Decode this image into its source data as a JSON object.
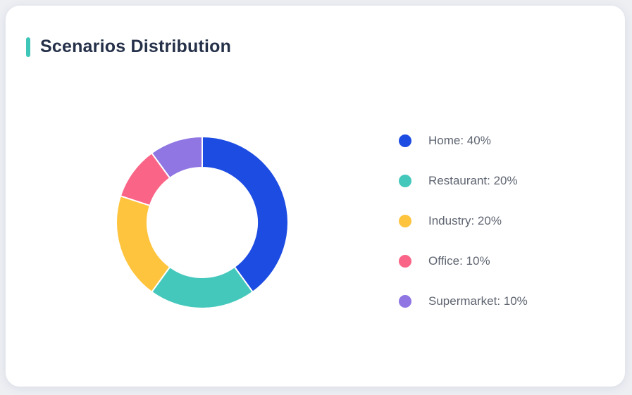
{
  "page": {
    "background_color": "#edeff3"
  },
  "card": {
    "background_color": "#ffffff"
  },
  "header": {
    "title": "Scenarios Distribution",
    "accent_color": "#3ec6b9"
  },
  "chart_data": {
    "type": "pie",
    "title": "Scenarios Distribution",
    "donut": true,
    "start_angle_deg": 0,
    "direction": "clockwise",
    "outer_radius_px": 122,
    "inner_radius_px": 78,
    "slice_border_color": "#ffffff",
    "slice_border_width": 2,
    "legend_position": "right",
    "categories": [
      "Home",
      "Restaurant",
      "Industry",
      "Office",
      "Supermarket"
    ],
    "values": [
      40,
      20,
      20,
      10,
      10
    ],
    "unit": "%",
    "series": [
      {
        "name": "Home",
        "value": 40,
        "color": "#1d4ce2",
        "label": "Home: 40%"
      },
      {
        "name": "Restaurant",
        "value": 20,
        "color": "#45c8bc",
        "label": "Restaurant: 20%"
      },
      {
        "name": "Industry",
        "value": 20,
        "color": "#fec43e",
        "label": "Industry: 20%"
      },
      {
        "name": "Office",
        "value": 10,
        "color": "#fa6486",
        "label": "Office: 10%"
      },
      {
        "name": "Supermarket",
        "value": 10,
        "color": "#8f76e3",
        "label": "Supermarket: 10%"
      }
    ]
  }
}
